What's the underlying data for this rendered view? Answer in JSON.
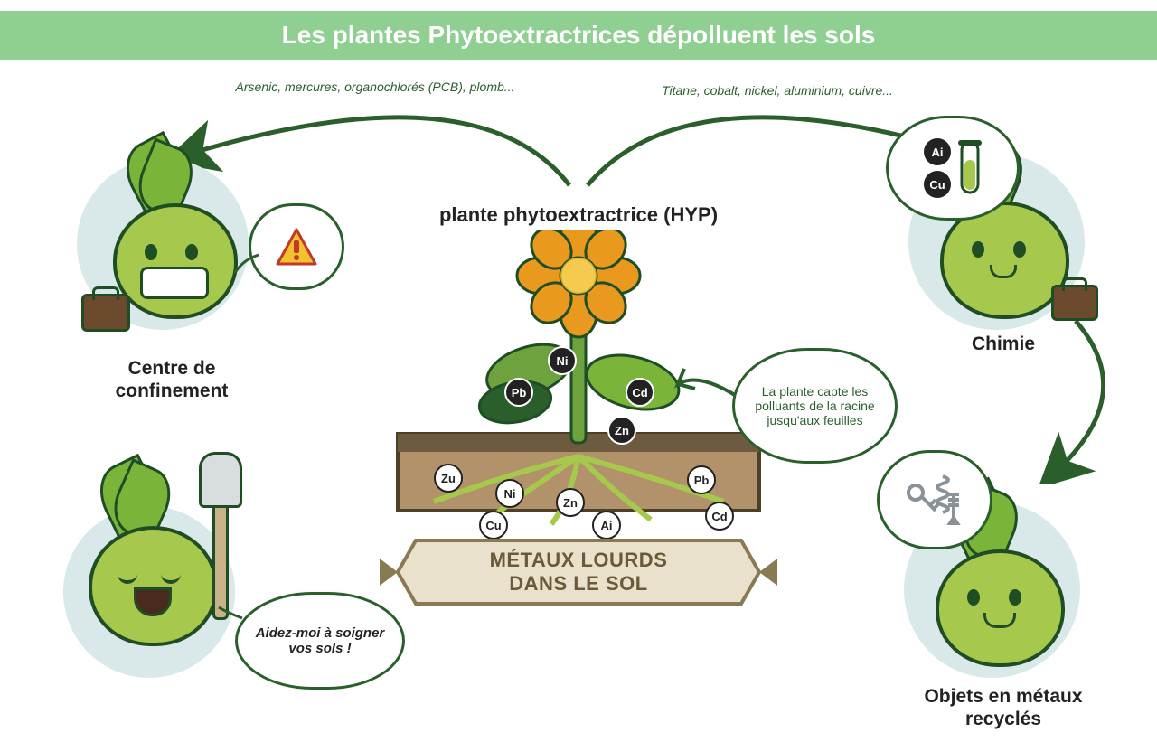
{
  "colors": {
    "title_bg": "#8fcf91",
    "title_text": "#ffffff",
    "dark_green": "#2a5f2c",
    "mid_green": "#6ea23f",
    "light_green": "#a6c84d",
    "leaf_green": "#7ab53a",
    "outline": "#1f4d24",
    "pale_blue": "#d9e8e8",
    "yellow": "#f4c12f",
    "orange": "#e99a1e",
    "brown_light": "#b2926a",
    "brown_dark": "#6e5a3f",
    "banner_fill": "#eae1cc",
    "banner_stroke": "#8a7a54",
    "grey": "#7e8a8f",
    "black": "#222222",
    "white": "#ffffff",
    "metal_grey": "#8a9298",
    "red_alert": "#c0392b"
  },
  "title": "Les plantes Phytoextractrices dépolluent les sols",
  "arrows": {
    "left_text": "Arsenic, mercures, organochlorés (PCB), plomb...",
    "right_text": "Titane, cobalt, nickel, aluminium, cuivre..."
  },
  "center": {
    "label": "plante phytoextractrice (HYP)",
    "banner": "MÉTAUX LOURDS\nDANS LE SOL",
    "callout": "La plante capte les polluants de la racine jusqu'aux feuilles",
    "leaf_metals": [
      "Ni",
      "Pb",
      "Cd",
      "Zn"
    ],
    "root_metals": [
      "Zu",
      "Ni",
      "Cu",
      "Zn",
      "Ai",
      "Pb",
      "Cd"
    ]
  },
  "left_top": {
    "label": "Centre de\nconfinement"
  },
  "left_bottom": {
    "bubble": "Aidez-moi à soigner vos sols !"
  },
  "right_top": {
    "label": "Chimie",
    "bubble_chips": [
      "Ai",
      "Cu"
    ]
  },
  "right_bottom": {
    "label": "Objets en métaux\nrecyclés"
  },
  "layout": {
    "title_fontsize": 28,
    "label_fontsize": 21,
    "center_label_fontsize": 22,
    "banner_fontsize": 22,
    "callout_fontsize": 14,
    "arrow_text_fontsize": 14,
    "bubble_fontsize": 15,
    "metal_badge_size": 28,
    "sprout_body_w": 120,
    "sprout_body_h": 110
  }
}
